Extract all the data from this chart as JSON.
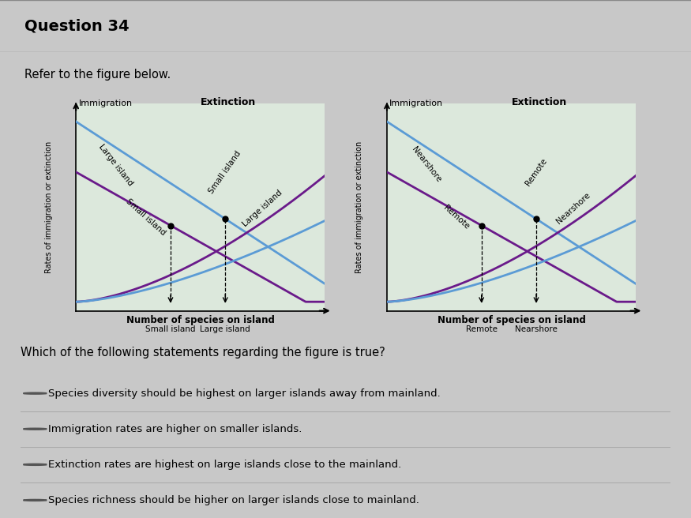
{
  "bg_color": "#c8c8c8",
  "title_bg": "#c0c0c0",
  "graph_bg": "#dce8dc",
  "title": "Question 34",
  "refer_text": "Refer to the figure below.",
  "question_text": "Which of the following statements regarding the figure is true?",
  "answers": [
    "Species diversity should be highest on larger islands away from mainland.",
    "Immigration rates are higher on smaller islands.",
    "Extinction rates are highest on large islands close to the mainland.",
    "Species richness should be higher on larger islands close to mainland."
  ],
  "imm_color": "#5b9bd5",
  "ext_color_small": "#6a1a8a",
  "ext_color_large": "#5b9bd5",
  "line_color1": "#5b9bd5",
  "line_color2": "#6a1a8a"
}
